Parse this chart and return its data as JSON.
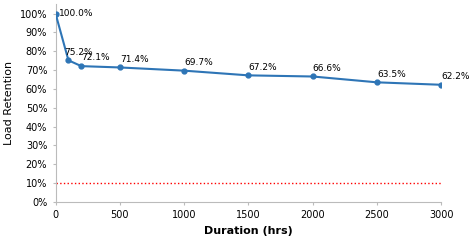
{
  "x": [
    0,
    100,
    200,
    500,
    1000,
    1500,
    2000,
    2500,
    3000
  ],
  "y": [
    100.0,
    75.2,
    72.1,
    71.4,
    69.7,
    67.2,
    66.6,
    63.5,
    62.2
  ],
  "labels": [
    "100.0%",
    "75.2%",
    "72.1%",
    "71.4%",
    "69.7%",
    "67.2%",
    "66.6%",
    "63.5%",
    "62.2%"
  ],
  "line_color": "#2E75B6",
  "marker_color": "#2E75B6",
  "ref_line_y": 10,
  "ref_line_color": "red",
  "xlabel": "Duration (hrs)",
  "ylabel": "Load Retention",
  "xlim": [
    0,
    3000
  ],
  "ylim": [
    0,
    105
  ],
  "yticks": [
    0,
    10,
    20,
    30,
    40,
    50,
    60,
    70,
    80,
    90,
    100
  ],
  "xticks": [
    0,
    500,
    1000,
    1500,
    2000,
    2500,
    3000
  ],
  "background_color": "#ffffff",
  "label_fontsize": 6.5,
  "axis_label_fontsize": 8,
  "tick_fontsize": 7
}
